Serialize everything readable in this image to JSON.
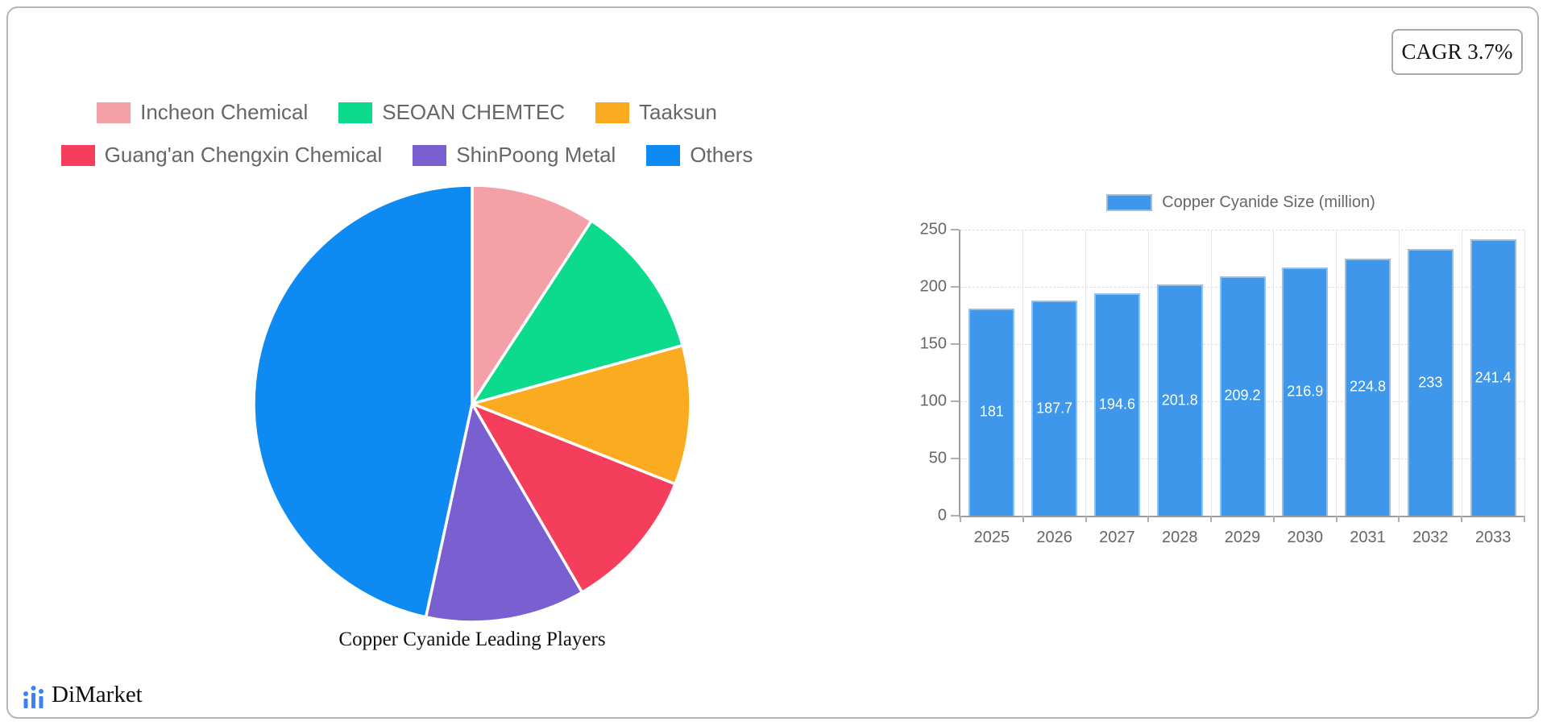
{
  "cagr_badge": "CAGR 3.7%",
  "brand": {
    "name": "DiMarket"
  },
  "colors": {
    "accent_blue": "#0D8BF2",
    "bar_fill": "#3E97EA",
    "bar_border": "#8FC0F0",
    "axis_text": "#666666",
    "grid_line": "#e7e7e7",
    "frame_border": "#b4b4b4"
  },
  "chart_data": [
    {
      "type": "pie",
      "title": "Copper Cyanide Leading Players",
      "legend_position": "top",
      "start_angle_deg": 0,
      "direction": "clockwise",
      "slices": [
        {
          "label": "Incheon Chemical",
          "value_pct": 9.2,
          "color": "#F4A0A6"
        },
        {
          "label": "SEOAN CHEMTEC",
          "value_pct": 11.5,
          "color": "#0CDA8D"
        },
        {
          "label": "Taaksun",
          "value_pct": 10.3,
          "color": "#FBAB1F"
        },
        {
          "label": "Guang'an Chengxin Chemical",
          "value_pct": 10.6,
          "color": "#F53E5C"
        },
        {
          "label": "ShinPoong Metal",
          "value_pct": 11.8,
          "color": "#7A5FD0"
        },
        {
          "label": "Others",
          "value_pct": 46.6,
          "color": "#0D8BF2"
        }
      ]
    },
    {
      "type": "bar",
      "legend_label": "Copper Cyanide Size (million)",
      "bar_color": "#3E97EA",
      "bar_border_color": "#8FC0F0",
      "categories": [
        "2025",
        "2026",
        "2027",
        "2028",
        "2029",
        "2030",
        "2031",
        "2032",
        "2033"
      ],
      "values": [
        181,
        187.7,
        194.6,
        201.8,
        209.2,
        216.9,
        224.8,
        233,
        241.4
      ],
      "ylim": [
        0,
        250
      ],
      "yticks": [
        0,
        50,
        100,
        150,
        200,
        250
      ],
      "grid": true,
      "value_label_position": "inside-middle"
    }
  ]
}
